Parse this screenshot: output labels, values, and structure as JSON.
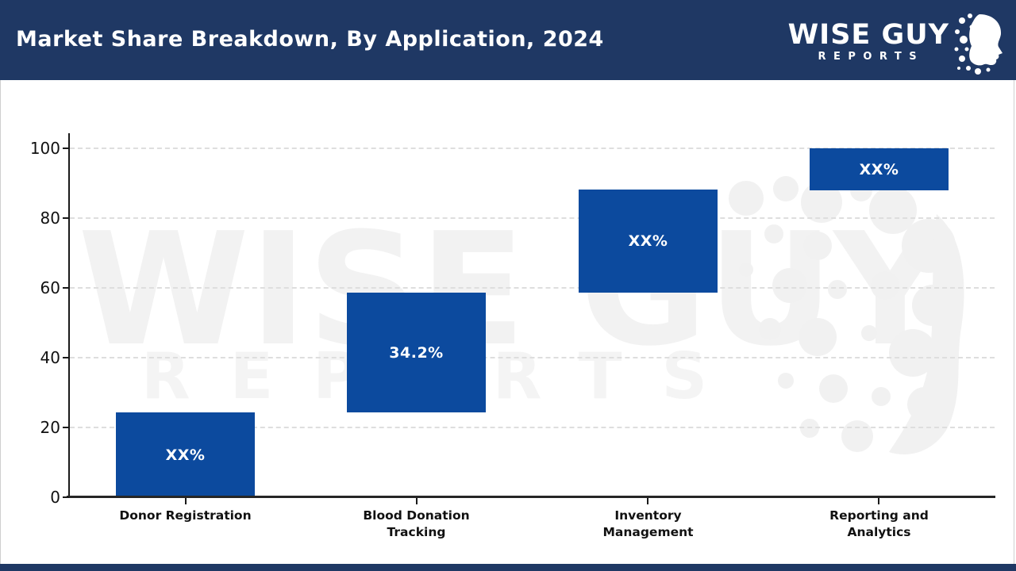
{
  "header": {
    "title": "Market Share Breakdown, By Application, 2024",
    "logo": {
      "line1": "WISE GUY",
      "line2": "REPORTS"
    }
  },
  "watermark": {
    "line1": "WISE GUY",
    "line2": "REPORTS"
  },
  "colors": {
    "header_navy": "#1f3864",
    "bar_blue": "#0c4a9e",
    "gridline_gray": "#dedede",
    "watermark_gray": "#f2f2f2"
  },
  "chart_data": {
    "type": "bar",
    "subtype": "waterfall",
    "title": "Market Share Breakdown, By Application, 2024",
    "xlabel": "",
    "ylabel": "",
    "ylim": [
      0,
      100
    ],
    "yticks": [
      0,
      20,
      40,
      60,
      80,
      100
    ],
    "grid": "horizontal-dashed",
    "legend": "none",
    "bar_color": "#0c4a9e",
    "categories": [
      "Donor Registration",
      "Blood Donation Tracking",
      "Inventory Management",
      "Reporting and Analytics"
    ],
    "bars": [
      {
        "category_lines": [
          "Donor Registration"
        ],
        "start": 0,
        "end": 24.4,
        "value": 24.4,
        "label": "XX%"
      },
      {
        "category_lines": [
          "Blood Donation",
          "Tracking"
        ],
        "start": 24.4,
        "end": 58.6,
        "value": 34.2,
        "label": "34.2%"
      },
      {
        "category_lines": [
          "Inventory",
          "Management"
        ],
        "start": 58.6,
        "end": 88.0,
        "value": 29.4,
        "label": "XX%"
      },
      {
        "category_lines": [
          "Reporting and",
          "Analytics"
        ],
        "start": 88.0,
        "end": 100.0,
        "value": 12.0,
        "label": "XX%"
      }
    ]
  }
}
